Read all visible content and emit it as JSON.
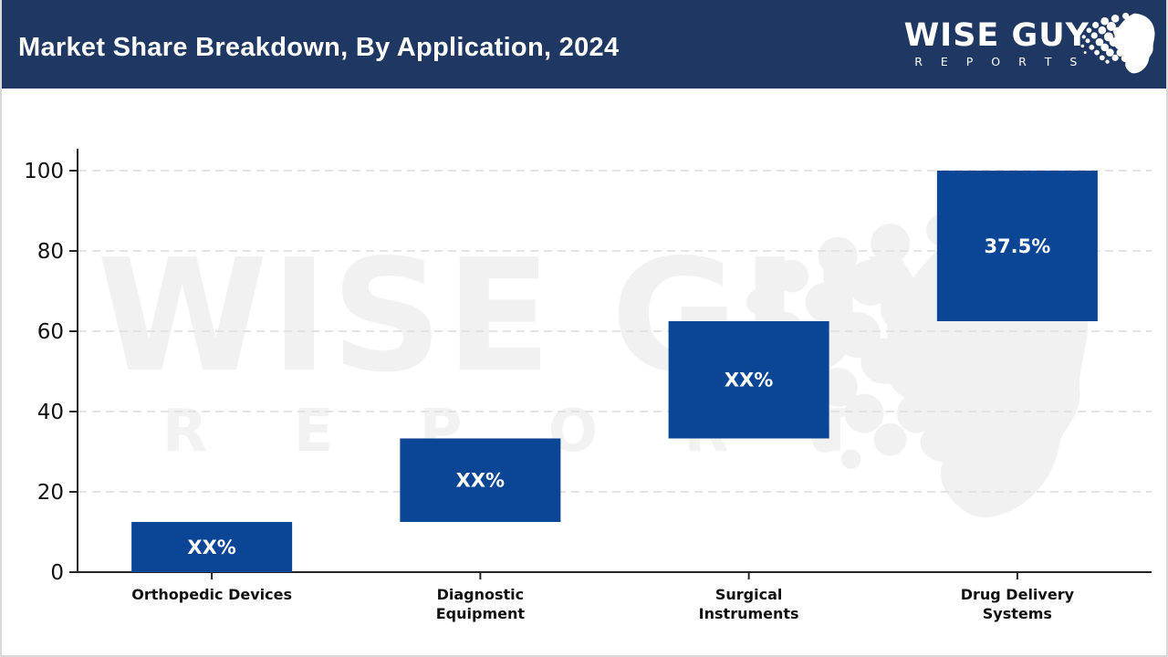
{
  "header": {
    "title": "Market Share Breakdown, By Application, 2024",
    "background_color": "#1f3863",
    "logo": {
      "line1": "WISE GUY",
      "line2": "R E P O R T S",
      "icon": "dotted-face-profile-icon"
    }
  },
  "watermark": {
    "line1": "WISE GUY",
    "line2": "R E P O R T S",
    "icon": "dotted-face-profile-icon",
    "color": "#f1f1f1"
  },
  "chart_data": {
    "type": "bar",
    "subtype": "floating-waterfall",
    "title": "Market Share Breakdown, By Application, 2024",
    "categories": [
      "Orthopedic Devices",
      "Diagnostic\nEquipment",
      "Surgical\nInstruments",
      "Drug Delivery\nSystems"
    ],
    "segments": [
      {
        "category": "Orthopedic Devices",
        "start": 0,
        "end": 12.5,
        "label": "XX%"
      },
      {
        "category": "Diagnostic Equipment",
        "start": 12.5,
        "end": 33.3,
        "label": "XX%"
      },
      {
        "category": "Surgical Instruments",
        "start": 33.3,
        "end": 62.5,
        "label": "XX%"
      },
      {
        "category": "Drug Delivery Systems",
        "start": 62.5,
        "end": 100,
        "label": "37.5%"
      }
    ],
    "values": [
      12.5,
      20.8,
      29.2,
      37.5
    ],
    "xlabel": "",
    "ylabel": "",
    "ylim": [
      0,
      100
    ],
    "yticks": [
      0,
      20,
      40,
      60,
      80,
      100
    ],
    "grid": "horizontal-dashed",
    "legend": "none",
    "colors": {
      "bar": "#0a4596",
      "bar_label": "#ffffff",
      "axis": "#262626",
      "tick_text": "#111111",
      "gridline": "#e1e1e1"
    }
  }
}
